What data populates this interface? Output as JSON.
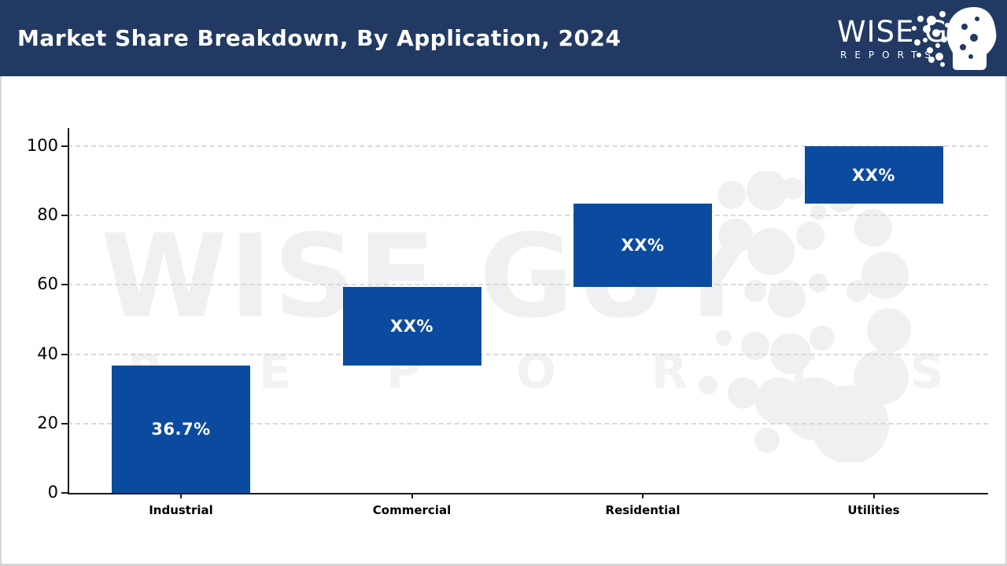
{
  "header": {
    "title": "Market Share Breakdown, By Application, 2024",
    "logo": {
      "line1": "WISE GUY",
      "line2": "REPORTS"
    }
  },
  "watermark": {
    "line1": "WISE GUY",
    "line2": "R E P O R T S"
  },
  "chart_data": {
    "type": "bar",
    "subtype": "waterfall",
    "title": "Market Share Breakdown, By Application, 2024",
    "categories": [
      "Industrial",
      "Commercial",
      "Residential",
      "Utilities"
    ],
    "segments": [
      {
        "category": "Industrial",
        "start": 0,
        "end": 36.7,
        "value": 36.7,
        "label": "36.7%"
      },
      {
        "category": "Commercial",
        "start": 36.7,
        "end": 59.4,
        "value": 22.7,
        "label": "XX%"
      },
      {
        "category": "Residential",
        "start": 59.4,
        "end": 83.4,
        "value": 24.0,
        "label": "XX%"
      },
      {
        "category": "Utilities",
        "start": 83.4,
        "end": 100,
        "value": 16.6,
        "label": "XX%"
      }
    ],
    "yticks": [
      0,
      20,
      40,
      60,
      80,
      100
    ],
    "ylim": [
      0,
      100
    ],
    "xlabel": "",
    "ylabel": "",
    "grid": "horizontal-dashed",
    "legend": "none",
    "colors": {
      "bar": "#0b4b9f",
      "bar_label": "#ffffff",
      "gridline": "#d9d9d9",
      "axis": "#1a1a1a",
      "header_bg": "#223a63",
      "watermark": "#f0f0f2"
    }
  }
}
